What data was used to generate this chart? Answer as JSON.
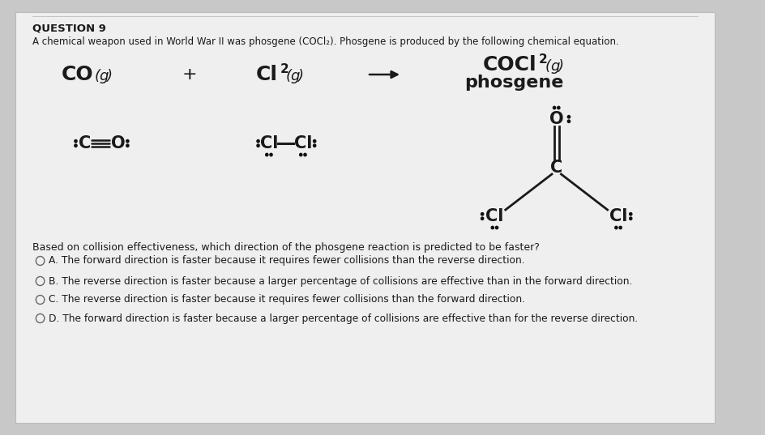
{
  "background_color": "#c8c8c8",
  "content_bg": "#f0f0f0",
  "title": "QUESTION 9",
  "intro_text": "A chemical weapon used in World War II was phosgene (COCl₂). Phosgene is produced by the following chemical equation.",
  "question_text": "Based on collision effectiveness, which direction of the phosgene reaction is predicted to be faster?",
  "options": [
    "A. The forward direction is faster because it requires fewer collisions than the reverse direction.",
    "B. The reverse direction is faster because a larger percentage of collisions are effective than in the forward direction.",
    "C. The reverse direction is faster because it requires fewer collisions than the forward direction.",
    "D. The forward direction is faster because a larger percentage of collisions are effective than for the reverse direction."
  ],
  "font_color": "#1a1a1a"
}
